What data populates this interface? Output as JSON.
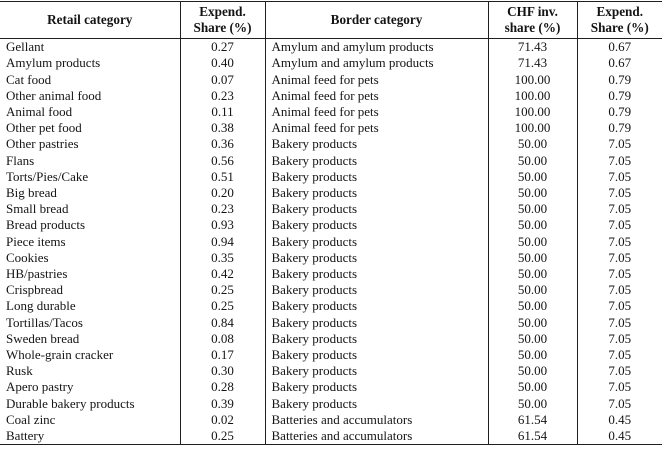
{
  "table": {
    "columns": [
      {
        "key": "retail_category",
        "lines": [
          "Retail category"
        ],
        "align": "left"
      },
      {
        "key": "expend_share_retail",
        "lines": [
          "Expend.",
          "Share (%)"
        ],
        "align": "center"
      },
      {
        "key": "border_category",
        "lines": [
          "Border category"
        ],
        "align": "left"
      },
      {
        "key": "chf_inv_share",
        "lines": [
          "CHF inv.",
          "share (%)"
        ],
        "align": "center"
      },
      {
        "key": "expend_share_border",
        "lines": [
          "Expend.",
          "Share (%)"
        ],
        "align": "center"
      }
    ],
    "rows": [
      [
        "Gellant",
        "0.27",
        "Amylum and amylum products",
        "71.43",
        "0.67"
      ],
      [
        "Amylum products",
        "0.40",
        "Amylum and amylum products",
        "71.43",
        "0.67"
      ],
      [
        "Cat food",
        "0.07",
        "Animal feed for pets",
        "100.00",
        "0.79"
      ],
      [
        "Other animal food",
        "0.23",
        "Animal feed for pets",
        "100.00",
        "0.79"
      ],
      [
        "Animal food",
        "0.11",
        "Animal feed for pets",
        "100.00",
        "0.79"
      ],
      [
        "Other pet food",
        "0.38",
        "Animal feed for pets",
        "100.00",
        "0.79"
      ],
      [
        "Other pastries",
        "0.36",
        "Bakery products",
        "50.00",
        "7.05"
      ],
      [
        "Flans",
        "0.56",
        "Bakery products",
        "50.00",
        "7.05"
      ],
      [
        "Torts/Pies/Cake",
        "0.51",
        "Bakery products",
        "50.00",
        "7.05"
      ],
      [
        "Big bread",
        "0.20",
        "Bakery products",
        "50.00",
        "7.05"
      ],
      [
        "Small bread",
        "0.23",
        "Bakery products",
        "50.00",
        "7.05"
      ],
      [
        "Bread products",
        "0.93",
        "Bakery products",
        "50.00",
        "7.05"
      ],
      [
        "Piece items",
        "0.94",
        "Bakery products",
        "50.00",
        "7.05"
      ],
      [
        "Cookies",
        "0.35",
        "Bakery products",
        "50.00",
        "7.05"
      ],
      [
        "HB/pastries",
        "0.42",
        "Bakery products",
        "50.00",
        "7.05"
      ],
      [
        "Crispbread",
        "0.25",
        "Bakery products",
        "50.00",
        "7.05"
      ],
      [
        "Long durable",
        "0.25",
        "Bakery products",
        "50.00",
        "7.05"
      ],
      [
        "Tortillas/Tacos",
        "0.84",
        "Bakery products",
        "50.00",
        "7.05"
      ],
      [
        "Sweden bread",
        "0.08",
        "Bakery products",
        "50.00",
        "7.05"
      ],
      [
        "Whole-grain cracker",
        "0.17",
        "Bakery products",
        "50.00",
        "7.05"
      ],
      [
        "Rusk",
        "0.30",
        "Bakery products",
        "50.00",
        "7.05"
      ],
      [
        "Apero pastry",
        "0.28",
        "Bakery products",
        "50.00",
        "7.05"
      ],
      [
        "Durable bakery products",
        "0.39",
        "Bakery products",
        "50.00",
        "7.05"
      ],
      [
        "Coal zinc",
        "0.02",
        "Batteries and accumulators",
        "61.54",
        "0.45"
      ],
      [
        "Battery",
        "0.25",
        "Batteries and accumulators",
        "61.54",
        "0.45"
      ]
    ]
  }
}
